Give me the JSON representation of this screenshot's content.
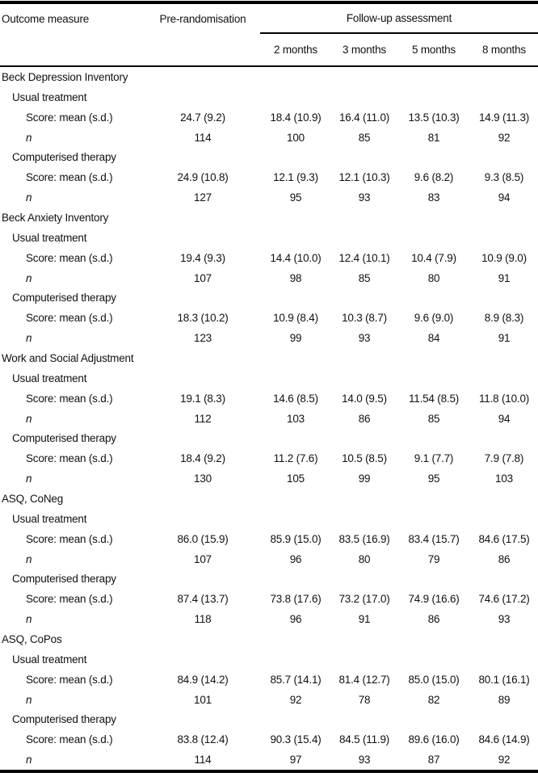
{
  "table": {
    "headers": {
      "outcome_measure": "Outcome measure",
      "pre_randomisation": "Pre-randomisation",
      "followup": "Follow-up assessment",
      "months": [
        "2 months",
        "3 months",
        "5 months",
        "8 months"
      ]
    },
    "row_labels": {
      "score": "Score: mean (s.d.)",
      "n": "n"
    },
    "sections": [
      {
        "title": "Beck Depression Inventory",
        "groups": [
          {
            "label": "Usual treatment",
            "scores": [
              "24.7 (9.2)",
              "18.4 (10.9)",
              "16.4 (11.0)",
              "13.5 (10.3)",
              "14.9 (11.3)"
            ],
            "n": [
              "114",
              "100",
              "85",
              "81",
              "92"
            ]
          },
          {
            "label": "Computerised therapy",
            "scores": [
              "24.9 (10.8)",
              "12.1 (9.3)",
              "12.1 (10.3)",
              "9.6 (8.2)",
              "9.3 (8.5)"
            ],
            "n": [
              "127",
              "95",
              "93",
              "83",
              "94"
            ]
          }
        ]
      },
      {
        "title": "Beck Anxiety Inventory",
        "groups": [
          {
            "label": "Usual treatment",
            "scores": [
              "19.4 (9.3)",
              "14.4 (10.0)",
              "12.4 (10.1)",
              "10.4 (7.9)",
              "10.9 (9.0)"
            ],
            "n": [
              "107",
              "98",
              "85",
              "80",
              "91"
            ]
          },
          {
            "label": "Computerised therapy",
            "scores": [
              "18.3 (10.2)",
              "10.9 (8.4)",
              "10.3 (8.7)",
              "9.6 (9.0)",
              "8.9 (8.3)"
            ],
            "n": [
              "123",
              "99",
              "93",
              "84",
              "91"
            ]
          }
        ]
      },
      {
        "title": "Work and Social Adjustment",
        "groups": [
          {
            "label": "Usual treatment",
            "scores": [
              "19.1 (8.3)",
              "14.6 (8.5)",
              "14.0 (9.5)",
              "11.54 (8.5)",
              "11.8 (10.0)"
            ],
            "n": [
              "112",
              "103",
              "86",
              "85",
              "94"
            ]
          },
          {
            "label": "Computerised therapy",
            "scores": [
              "18.4 (9.2)",
              "11.2 (7.6)",
              "10.5 (8.5)",
              "9.1 (7.7)",
              "7.9 (7.8)"
            ],
            "n": [
              "130",
              "105",
              "99",
              "95",
              "103"
            ]
          }
        ]
      },
      {
        "title": "ASQ, CoNeg",
        "groups": [
          {
            "label": "Usual treatment",
            "scores": [
              "86.0 (15.9)",
              "85.9 (15.0)",
              "83.5 (16.9)",
              "83.4 (15.7)",
              "84.6 (17.5)"
            ],
            "n": [
              "107",
              "96",
              "80",
              "79",
              "86"
            ]
          },
          {
            "label": "Computerised therapy",
            "scores": [
              "87.4 (13.7)",
              "73.8 (17.6)",
              "73.2 (17.0)",
              "74.9 (16.6)",
              "74.6 (17.2)"
            ],
            "n": [
              "118",
              "96",
              "91",
              "86",
              "93"
            ]
          }
        ]
      },
      {
        "title": "ASQ, CoPos",
        "groups": [
          {
            "label": "Usual treatment",
            "scores": [
              "84.9 (14.2)",
              "85.7 (14.1)",
              "81.4 (12.7)",
              "85.0 (15.0)",
              "80.1 (16.1)"
            ],
            "n": [
              "101",
              "92",
              "78",
              "82",
              "89"
            ]
          },
          {
            "label": "Computerised therapy",
            "scores": [
              "83.8 (12.4)",
              "90.3 (15.4)",
              "84.5 (11.9)",
              "89.6 (16.0)",
              "84.6 (14.9)"
            ],
            "n": [
              "114",
              "97",
              "93",
              "87",
              "92"
            ]
          }
        ]
      }
    ],
    "colors": {
      "background": "#ffffff",
      "text": "#111111",
      "rule": "#000000"
    }
  }
}
